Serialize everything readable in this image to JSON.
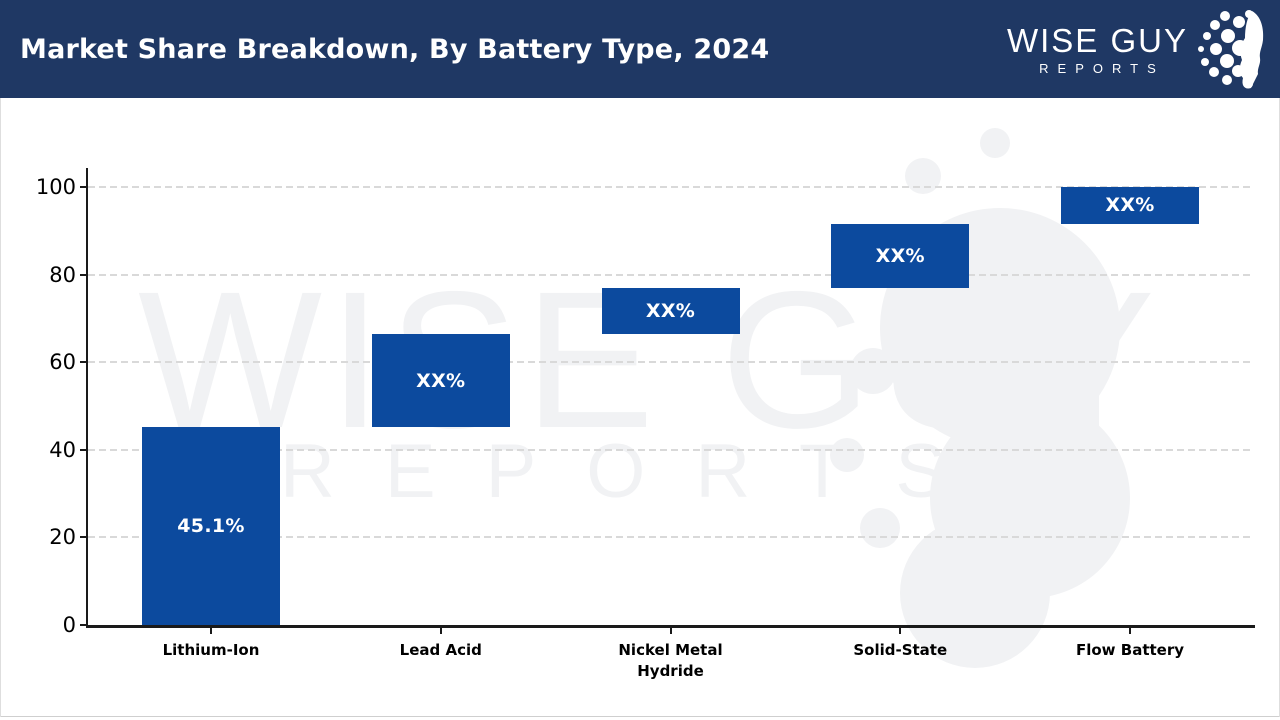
{
  "header": {
    "title": "Market Share Breakdown, By Battery Type, 2024",
    "logo": {
      "line1": "WISE GUY",
      "line2": "REPORTS"
    }
  },
  "watermark": {
    "line1": "WISE GUY",
    "line2": "REPORTS"
  },
  "colors": {
    "header_bg": "#1f3864",
    "bar": "#0c4a9e",
    "grid": "#d9d9d9",
    "bar_label_text": "#ffffff",
    "axis_text": "#000000",
    "watermark": "#f1f2f4"
  },
  "chart_data": {
    "type": "bar",
    "subtype": "waterfall",
    "title": "Market Share Breakdown, By Battery Type, 2024",
    "categories": [
      "Lithium-Ion",
      "Lead Acid",
      "Nickel Metal Hydride",
      "Solid-State",
      "Flow Battery"
    ],
    "segments": [
      {
        "category": "Lithium-Ion",
        "start": 0,
        "end": 45.1,
        "label": "45.1%"
      },
      {
        "category": "Lead Acid",
        "start": 45.1,
        "end": 66.4,
        "label": "XX%"
      },
      {
        "category": "Nickel Metal Hydride",
        "start": 66.4,
        "end": 77.0,
        "label": "XX%"
      },
      {
        "category": "Solid-State",
        "start": 77.0,
        "end": 91.6,
        "label": "XX%"
      },
      {
        "category": "Flow Battery",
        "start": 91.6,
        "end": 100.0,
        "label": "XX%"
      }
    ],
    "values": [
      45.1,
      21.3,
      10.6,
      14.6,
      8.4
    ],
    "xlabel": "",
    "ylabel": "",
    "yticks": [
      0,
      20,
      40,
      60,
      80,
      100
    ],
    "ylim": [
      0,
      104
    ],
    "grid": "horizontal-dashed",
    "legend": "none"
  }
}
